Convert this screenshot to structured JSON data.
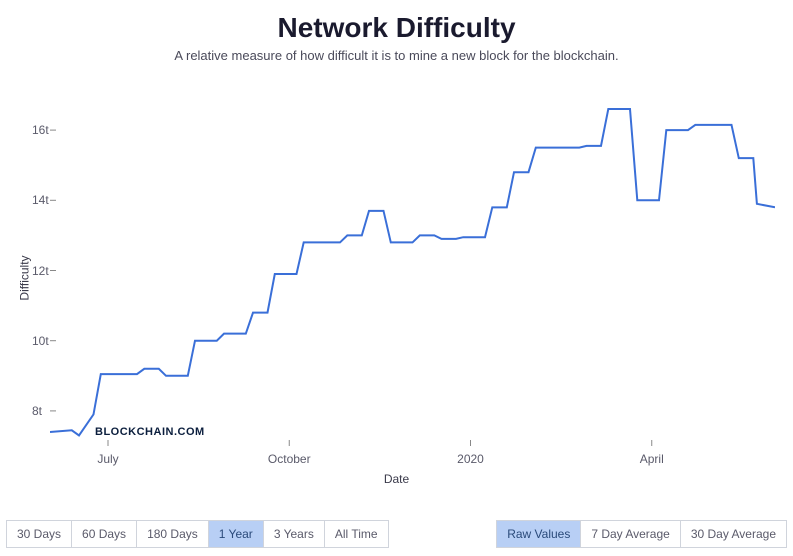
{
  "header": {
    "title": "Network Difficulty",
    "subtitle": "A relative measure of how difficult it is to mine a new block for the blockchain."
  },
  "chart": {
    "type": "line",
    "ylabel": "Difficulty",
    "xlabel": "Date",
    "line_color": "#3a6fd8",
    "background_color": "#ffffff",
    "ylim": [
      7,
      17
    ],
    "yticks": [
      8,
      10,
      12,
      14,
      16
    ],
    "ytick_labels": [
      "8t",
      "10t",
      "12t",
      "14t",
      "16t"
    ],
    "xticks": [
      0.08,
      0.33,
      0.58,
      0.83
    ],
    "xtick_labels": [
      "July",
      "October",
      "2020",
      "April"
    ],
    "data": [
      [
        0.0,
        7.4
      ],
      [
        0.03,
        7.45
      ],
      [
        0.04,
        7.3
      ],
      [
        0.06,
        7.9
      ],
      [
        0.07,
        9.05
      ],
      [
        0.12,
        9.05
      ],
      [
        0.13,
        9.2
      ],
      [
        0.15,
        9.2
      ],
      [
        0.16,
        9.0
      ],
      [
        0.19,
        9.0
      ],
      [
        0.2,
        10.0
      ],
      [
        0.23,
        10.0
      ],
      [
        0.24,
        10.2
      ],
      [
        0.27,
        10.2
      ],
      [
        0.28,
        10.8
      ],
      [
        0.3,
        10.8
      ],
      [
        0.31,
        11.9
      ],
      [
        0.34,
        11.9
      ],
      [
        0.35,
        12.8
      ],
      [
        0.4,
        12.8
      ],
      [
        0.41,
        13.0
      ],
      [
        0.43,
        13.0
      ],
      [
        0.44,
        13.7
      ],
      [
        0.46,
        13.7
      ],
      [
        0.47,
        12.8
      ],
      [
        0.5,
        12.8
      ],
      [
        0.51,
        13.0
      ],
      [
        0.53,
        13.0
      ],
      [
        0.54,
        12.9
      ],
      [
        0.56,
        12.9
      ],
      [
        0.57,
        12.95
      ],
      [
        0.6,
        12.95
      ],
      [
        0.61,
        13.8
      ],
      [
        0.63,
        13.8
      ],
      [
        0.64,
        14.8
      ],
      [
        0.66,
        14.8
      ],
      [
        0.67,
        15.5
      ],
      [
        0.73,
        15.5
      ],
      [
        0.74,
        15.55
      ],
      [
        0.76,
        15.55
      ],
      [
        0.77,
        16.6
      ],
      [
        0.8,
        16.6
      ],
      [
        0.81,
        14.0
      ],
      [
        0.84,
        14.0
      ],
      [
        0.85,
        16.0
      ],
      [
        0.88,
        16.0
      ],
      [
        0.89,
        16.15
      ],
      [
        0.94,
        16.15
      ],
      [
        0.95,
        15.2
      ],
      [
        0.97,
        15.2
      ],
      [
        0.975,
        13.9
      ],
      [
        1.0,
        13.8
      ]
    ]
  },
  "watermark": "BLOCKCHAIN.COM",
  "buttons": {
    "left": [
      {
        "label": "30 Days",
        "active": false
      },
      {
        "label": "60 Days",
        "active": false
      },
      {
        "label": "180 Days",
        "active": false
      },
      {
        "label": "1 Year",
        "active": true
      },
      {
        "label": "3 Years",
        "active": false
      },
      {
        "label": "All Time",
        "active": false
      }
    ],
    "right": [
      {
        "label": "Raw Values",
        "active": true
      },
      {
        "label": "7 Day Average",
        "active": false
      },
      {
        "label": "30 Day Average",
        "active": false
      }
    ]
  }
}
